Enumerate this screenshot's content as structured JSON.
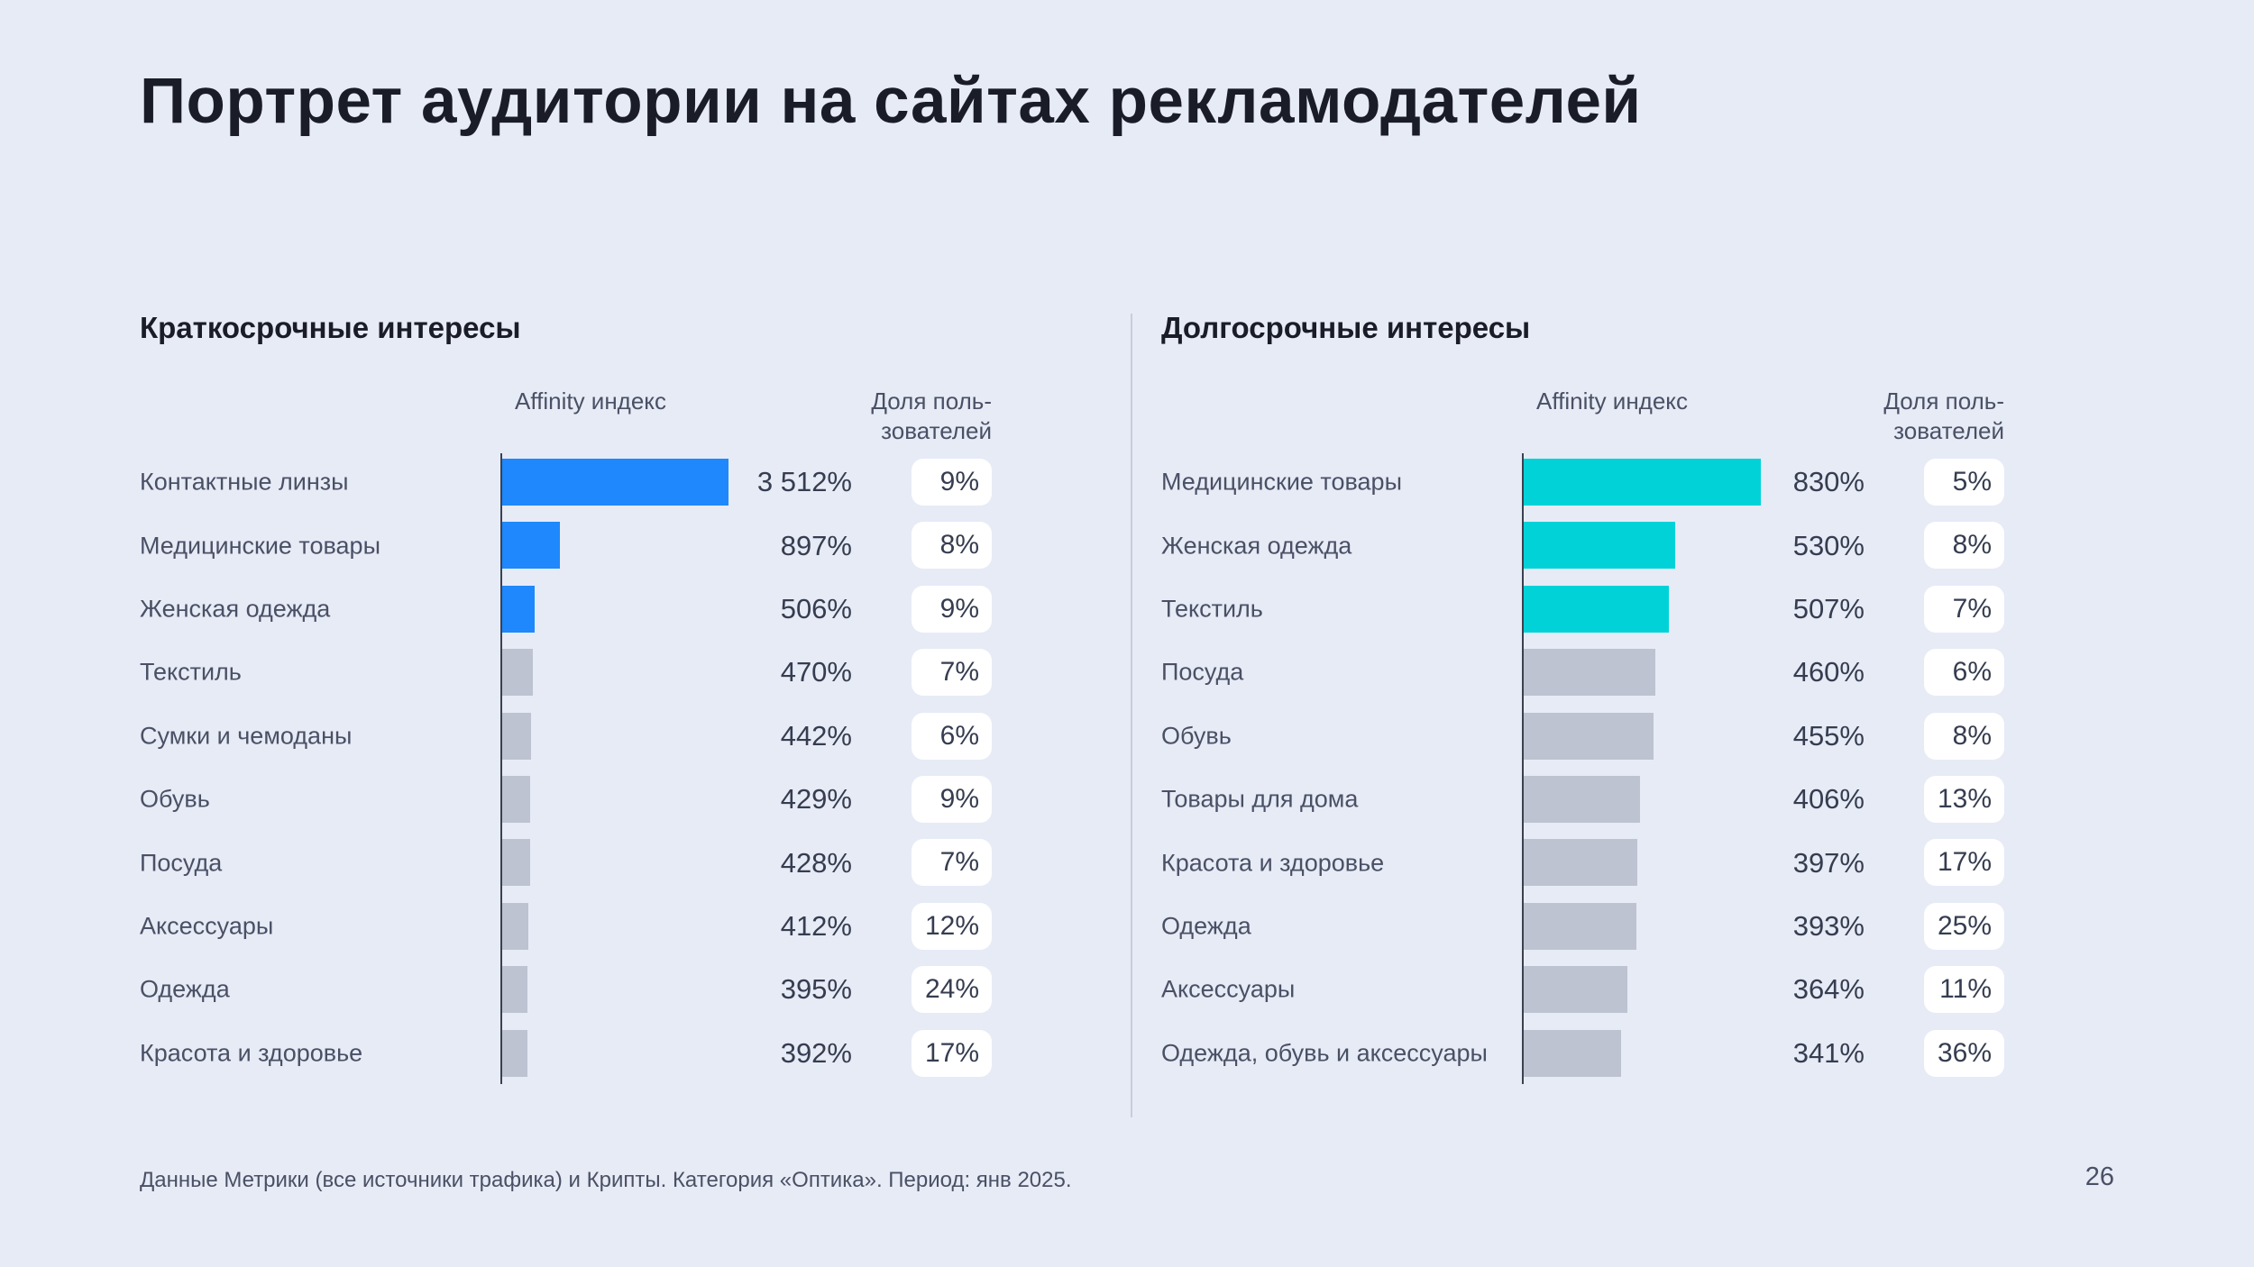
{
  "slide": {
    "title": "Портрет аудитории на сайтах рекламодателей",
    "footer": "Данные Метрики (все источники трафика) и Крипты. Категория «Оптика». Период: янв 2025.",
    "page_number": "26"
  },
  "columns": {
    "affinity": "Affinity индекс",
    "share_line1": "Доля поль-",
    "share_line2": "зователей"
  },
  "colors": {
    "background": "#E7EBF6",
    "title_text": "#1A1D28",
    "label_text": "#4A5065",
    "value_text": "#363D50",
    "axis": "#3A4150",
    "badge_bg": "#FFFFFF",
    "bar_gray": "#BEC3D2",
    "divider": "#C7CDDC",
    "accent_blue": "#1F88FC",
    "accent_cyan": "#00D2D8"
  },
  "chart_data": [
    {
      "type": "bar",
      "orientation": "horizontal",
      "title": "Краткосрочные интересы",
      "value_column": "Affinity индекс",
      "share_column": "Доля пользователей",
      "highlight_count": 3,
      "highlight_color": "#1F88FC",
      "categories": [
        "Контактные линзы",
        "Медицинские товары",
        "Женская одежда",
        "Текстиль",
        "Сумки и чемоданы",
        "Обувь",
        "Посуда",
        "Аксессуары",
        "Одежда",
        "Красота и здоровье"
      ],
      "values": [
        3512,
        897,
        506,
        470,
        442,
        429,
        428,
        412,
        395,
        392
      ],
      "value_labels": [
        "3 512%",
        "897%",
        "506%",
        "470%",
        "442%",
        "429%",
        "428%",
        "412%",
        "395%",
        "392%"
      ],
      "share_values": [
        9,
        8,
        9,
        7,
        6,
        9,
        7,
        12,
        24,
        17
      ],
      "share_labels": [
        "9%",
        "8%",
        "9%",
        "7%",
        "6%",
        "9%",
        "7%",
        "12%",
        "24%",
        "17%"
      ]
    },
    {
      "type": "bar",
      "orientation": "horizontal",
      "title": "Долгосрочные интересы",
      "value_column": "Affinity индекс",
      "share_column": "Доля пользователей",
      "highlight_count": 3,
      "highlight_color": "#00D2D8",
      "categories": [
        "Медицинские товары",
        "Женская одежда",
        "Текстиль",
        "Посуда",
        "Обувь",
        "Товары для дома",
        "Красота и здоровье",
        "Одежда",
        "Аксессуары",
        "Одежда, обувь и аксессуары"
      ],
      "values": [
        830,
        530,
        507,
        460,
        455,
        406,
        397,
        393,
        364,
        341
      ],
      "value_labels": [
        "830%",
        "530%",
        "507%",
        "460%",
        "455%",
        "406%",
        "397%",
        "393%",
        "364%",
        "341%"
      ],
      "share_values": [
        5,
        8,
        7,
        6,
        8,
        13,
        17,
        25,
        11,
        36
      ],
      "share_labels": [
        "5%",
        "8%",
        "7%",
        "6%",
        "8%",
        "13%",
        "17%",
        "25%",
        "11%",
        "36%"
      ]
    }
  ]
}
